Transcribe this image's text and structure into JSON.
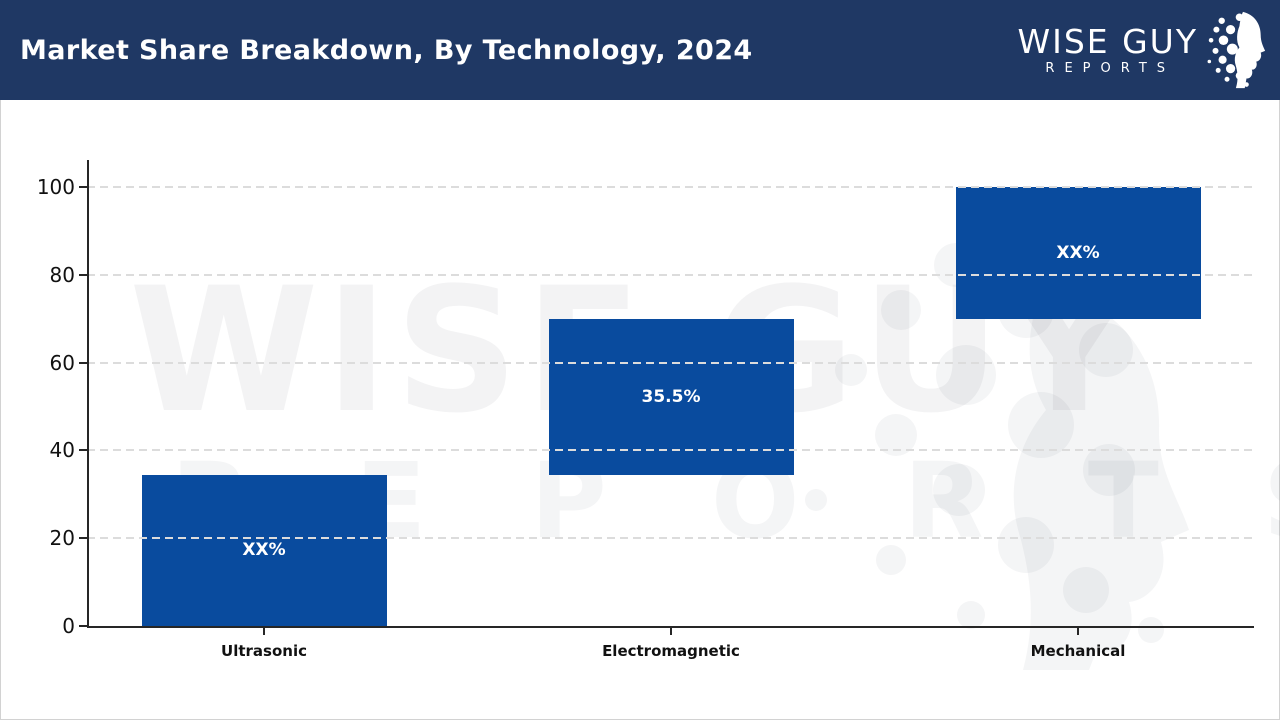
{
  "header": {
    "title": "Market Share Breakdown, By Technology, 2024",
    "logo": {
      "line1": "WISE GUY",
      "line2": "REPORTS"
    }
  },
  "watermark": {
    "line1": "WISE GUY",
    "line2": "R E P O R T S"
  },
  "chart_data": {
    "type": "bar",
    "subtype": "waterfall",
    "title": "Market Share Breakdown, By Technology, 2024",
    "categories": [
      "Ultrasonic",
      "Electromagnetic",
      "Mechanical"
    ],
    "segments": [
      {
        "category": "Ultrasonic",
        "start": 0,
        "end": 34.5,
        "label": "XX%"
      },
      {
        "category": "Electromagnetic",
        "start": 34.5,
        "end": 70.0,
        "label": "35.5%"
      },
      {
        "category": "Mechanical",
        "start": 70.0,
        "end": 100.0,
        "label": "XX%"
      }
    ],
    "xlabel": "",
    "ylabel": "",
    "yticks": [
      0,
      20,
      40,
      60,
      80,
      100
    ],
    "ylim": [
      0,
      106
    ],
    "grid": {
      "axis": "y",
      "style": "dashed",
      "color": "#dcdcdc",
      "on_top_of_bars": true
    },
    "legend": "none",
    "bar_color": "#094B9E",
    "bar_label_color": "#ffffff",
    "axis_color": "#262626",
    "header_color": "#1F3864"
  }
}
